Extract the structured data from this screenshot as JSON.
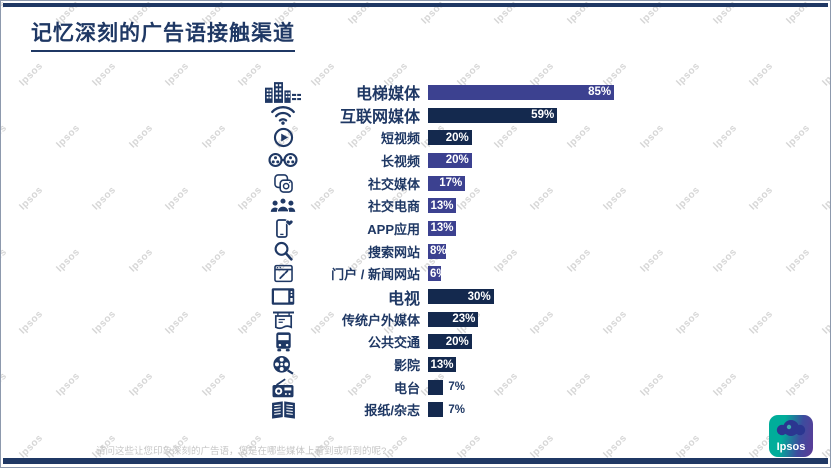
{
  "slide": {
    "title": "记忆深刻的广告语接触渠道",
    "footnote": "请问这些让您印象深刻的广告语，您是在哪些媒体上看到或听到的呢?",
    "watermark_text": "Ipsos",
    "logo_text": "Ipsos"
  },
  "theme": {
    "indigo": "#3C4190",
    "navy": "#14294E",
    "title_navy": "#1F3864",
    "footnote_gray": "#c6c6c6",
    "watermark_gray": "#d6d6d6"
  },
  "chart_data": {
    "type": "bar",
    "orientation": "horizontal",
    "title": "记忆深刻的广告语接触渠道",
    "xlim": [
      0,
      100
    ],
    "grid": false,
    "legend": "none",
    "value_labels": "on-bar",
    "categories": [
      "电梯媒体",
      "互联网媒体",
      "短视频",
      "长视频",
      "社交媒体",
      "社交电商",
      "APP应用",
      "搜索网站",
      "门户 / 新闻网站",
      "电视",
      "传统户外媒体",
      "公共交通",
      "影院",
      "电台",
      "报纸/杂志"
    ],
    "values": [
      85,
      59,
      20,
      20,
      17,
      13,
      13,
      8,
      6,
      30,
      23,
      20,
      13,
      7,
      7
    ],
    "items": [
      {
        "label": "电梯媒体",
        "value": 85,
        "display": "85%",
        "bold": true,
        "color": "indigo",
        "icon": "buildings-icon",
        "label_pos": "inside"
      },
      {
        "label": "互联网媒体",
        "value": 59,
        "display": "59%",
        "bold": true,
        "color": "navy",
        "icon": "wifi-icon",
        "label_pos": "inside"
      },
      {
        "label": "短视频",
        "value": 20,
        "display": "20%",
        "bold": false,
        "color": "navy",
        "icon": "play-icon",
        "label_pos": "inside"
      },
      {
        "label": "长视频",
        "value": 20,
        "display": "20%",
        "bold": false,
        "color": "indigo",
        "icon": "film-reels-icon",
        "label_pos": "inside"
      },
      {
        "label": "社交媒体",
        "value": 17,
        "display": "17%",
        "bold": false,
        "color": "indigo",
        "icon": "social-apps-icon",
        "label_pos": "inside"
      },
      {
        "label": "社交电商",
        "value": 13,
        "display": "13%",
        "bold": false,
        "color": "indigo",
        "icon": "people-group-icon",
        "label_pos": "inside"
      },
      {
        "label": "APP应用",
        "value": 13,
        "display": "13%",
        "bold": false,
        "color": "indigo",
        "icon": "phone-heart-icon",
        "label_pos": "inside"
      },
      {
        "label": "搜索网站",
        "value": 8,
        "display": "8%",
        "bold": false,
        "color": "indigo",
        "icon": "search-icon",
        "label_pos": "inside"
      },
      {
        "label": "门户 / 新闻网站",
        "value": 6,
        "display": "6%",
        "bold": false,
        "color": "indigo",
        "icon": "browser-link-icon",
        "label_pos": "inside"
      },
      {
        "label": "电视",
        "value": 30,
        "display": "30%",
        "bold": true,
        "color": "navy",
        "icon": "tv-icon",
        "label_pos": "inside"
      },
      {
        "label": "传统户外媒体",
        "value": 23,
        "display": "23%",
        "bold": false,
        "color": "navy",
        "icon": "billboard-icon",
        "label_pos": "inside"
      },
      {
        "label": "公共交通",
        "value": 20,
        "display": "20%",
        "bold": false,
        "color": "navy",
        "icon": "bus-icon",
        "label_pos": "inside"
      },
      {
        "label": "影院",
        "value": 13,
        "display": "13%",
        "bold": false,
        "color": "navy",
        "icon": "film-reel-icon",
        "label_pos": "inside"
      },
      {
        "label": "电台",
        "value": 7,
        "display": "7%",
        "bold": false,
        "color": "navy",
        "icon": "radio-icon",
        "label_pos": "outside"
      },
      {
        "label": "报纸/杂志",
        "value": 7,
        "display": "7%",
        "bold": false,
        "color": "navy",
        "icon": "newspaper-icon",
        "label_pos": "outside"
      }
    ]
  }
}
